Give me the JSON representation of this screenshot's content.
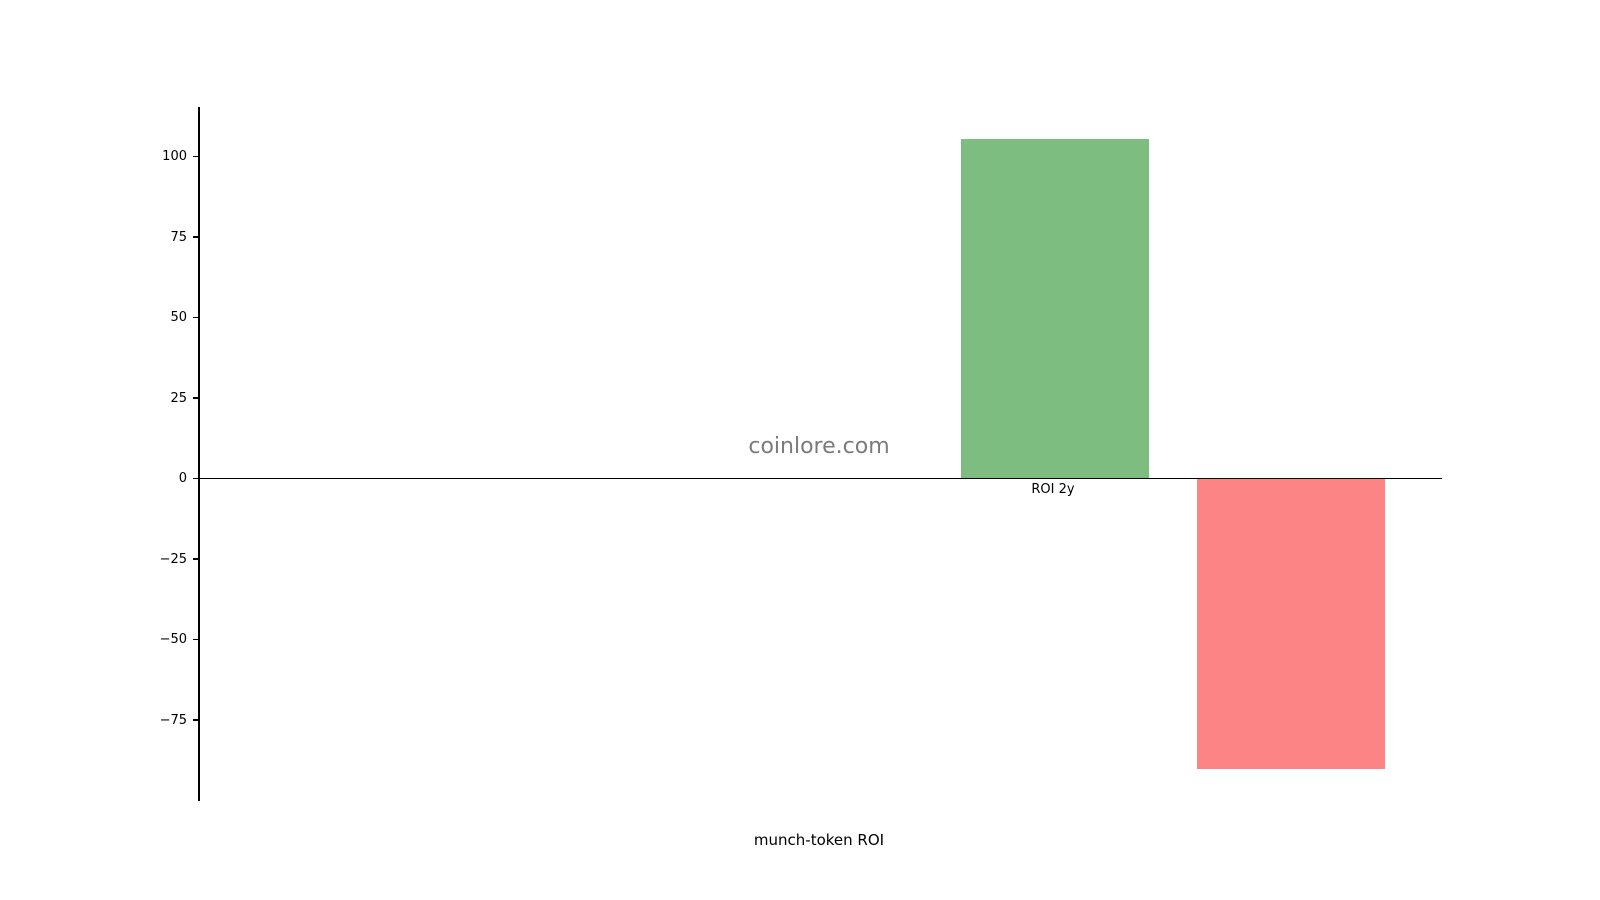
{
  "page": {
    "background": "#ffffff"
  },
  "watermark": {
    "text": "coinlore.com",
    "color": "#7b7b7b"
  },
  "chart_data": {
    "type": "bar",
    "title": "",
    "xlabel": "munch-token ROI",
    "ylabel": "",
    "categories": [
      "ROI 2y",
      ""
    ],
    "values": [
      105.4,
      -90
    ],
    "bar_colors": [
      "#7dbe80",
      "#fd8484"
    ],
    "positive_color": "#7dbe80",
    "negative_color": "#fd8484",
    "ytick_values": [
      100,
      75,
      50,
      25,
      0,
      -25,
      -50,
      -75
    ],
    "ytick_labels": [
      "100",
      "75",
      "50",
      "25",
      "0",
      "−25",
      "−50",
      "−75"
    ],
    "ylim": [
      -100.5,
      115.5
    ],
    "grid": false,
    "legend_visible": false,
    "axis_color": "#000000"
  }
}
